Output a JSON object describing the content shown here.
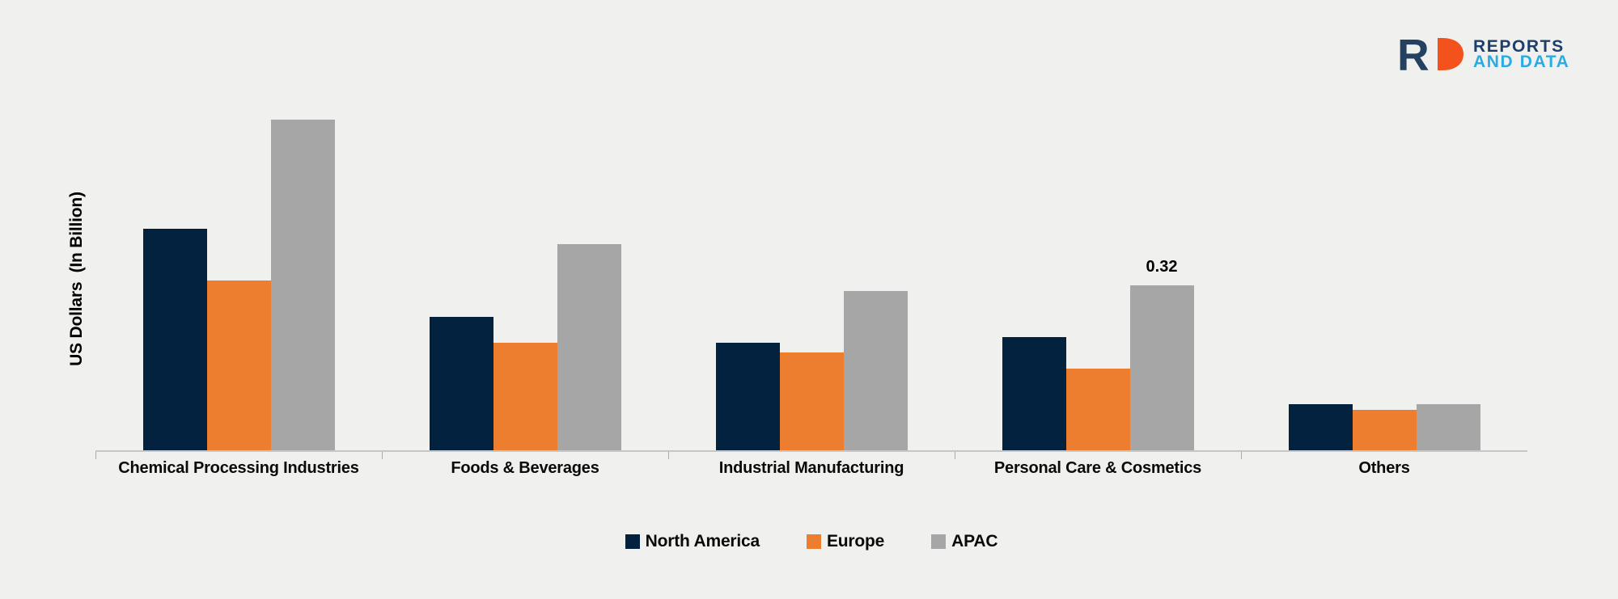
{
  "background_color": "#f0f1ef",
  "logo": {
    "line1": "REPORTS",
    "line2": "AND DATA",
    "colors": {
      "mark_r": "#24415f",
      "mark_d": "#f4521d",
      "line1": "#1e3f6a",
      "line2": "#2aabe2"
    }
  },
  "chart_data": {
    "type": "bar",
    "title": "",
    "xlabel": "",
    "ylabel": "US Dollars  (In Billion)",
    "ylim": [
      0,
      0.7
    ],
    "grid": false,
    "legend_position": "bottom",
    "axis_color": "#c6c6c6",
    "categories": [
      "Chemical Processing Industries",
      "Foods & Beverages",
      "Industrial Manufacturing",
      "Personal Care & Cosmetics",
      "Others"
    ],
    "series": [
      {
        "name": "North America",
        "color": "#032240",
        "values": [
          0.43,
          0.26,
          0.21,
          0.22,
          0.09
        ]
      },
      {
        "name": "Europe",
        "color": "#ed7d2f",
        "values": [
          0.33,
          0.21,
          0.19,
          0.16,
          0.08
        ]
      },
      {
        "name": "APAC",
        "color": "#a6a6a6",
        "values": [
          0.64,
          0.4,
          0.31,
          0.32,
          0.09
        ]
      }
    ],
    "point_labels": [
      {
        "series_index": 2,
        "category_index": 3,
        "text": "0.32"
      }
    ]
  }
}
